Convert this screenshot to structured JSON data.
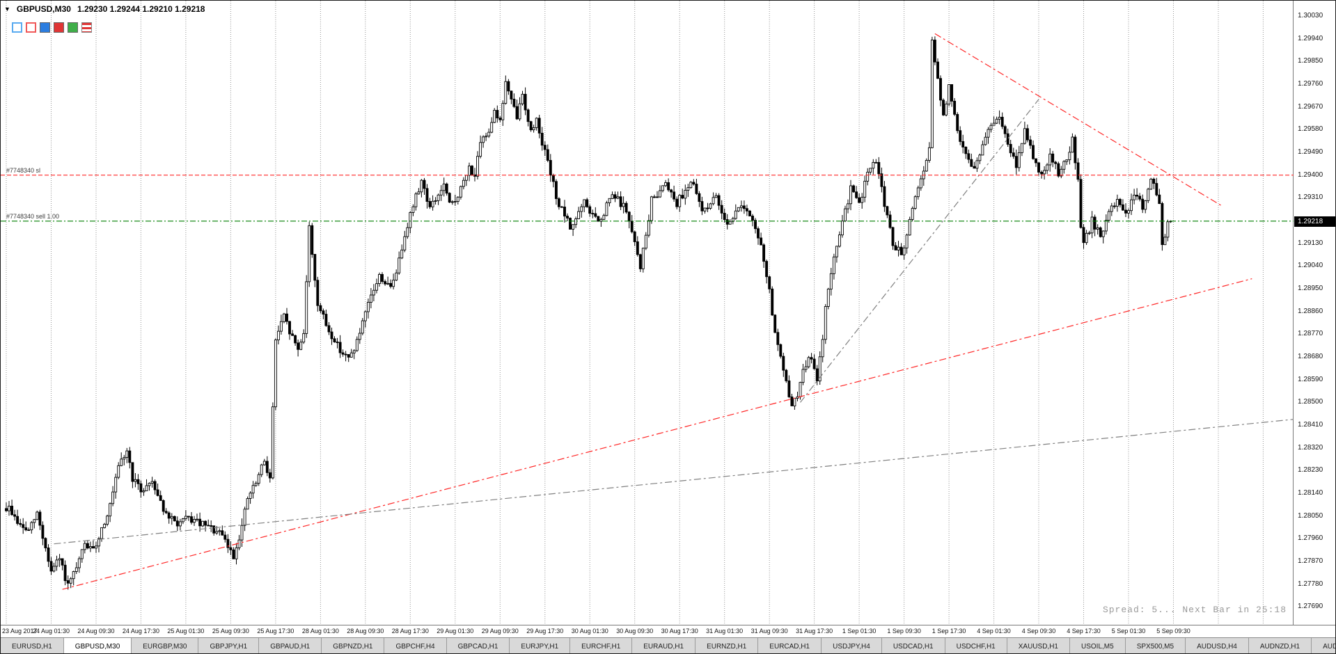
{
  "chart_header": {
    "collapse_icon": "▼",
    "title": "GBPUSD,M30",
    "ohlc": "1.29230 1.29244 1.29210 1.29218"
  },
  "toolbar": {
    "swatches": [
      {
        "name": "outline-blue-swatch",
        "style": "outline",
        "color": "#5aabf0"
      },
      {
        "name": "outline-red-swatch",
        "style": "outline",
        "color": "#f05a5a"
      },
      {
        "name": "blue-fill-swatch",
        "style": "fill",
        "color": "#2b7de0"
      },
      {
        "name": "red-fill-swatch",
        "style": "fill",
        "color": "#e03535"
      },
      {
        "name": "green-fill-swatch",
        "style": "fill",
        "color": "#3fae49"
      },
      {
        "name": "striped-red-swatch",
        "style": "stripes",
        "color": "#e03535"
      }
    ]
  },
  "status_text": "Spread: 5... Next Bar in 25:18",
  "current_price": "1.29218",
  "order_lines": [
    {
      "label": "#7748340 sl",
      "price": 1.294,
      "color": "#ff2626"
    },
    {
      "label": "#7748340 sell 1.00",
      "price": 1.29218,
      "color": "#007f00"
    }
  ],
  "chart_data": {
    "type": "candlestick",
    "symbol": "GBPUSD",
    "timeframe": "M30",
    "bars_total": 416,
    "y_axis": {
      "labels": [
        "1.30030",
        "1.29940",
        "1.29850",
        "1.29760",
        "1.29670",
        "1.29580",
        "1.29490",
        "1.29400",
        "1.29310",
        "1.29220",
        "1.29130",
        "1.29040",
        "1.28950",
        "1.28860",
        "1.28770",
        "1.28680",
        "1.28590",
        "1.28500",
        "1.28410",
        "1.28320",
        "1.28230",
        "1.28140",
        "1.28050",
        "1.27960",
        "1.27870",
        "1.27780",
        "1.27690"
      ],
      "max": 1.3003,
      "min": 1.2769,
      "step": 0.0009
    },
    "x_axis": {
      "labels": [
        "23 Aug 2017",
        "24 Aug 01:30",
        "24 Aug 09:30",
        "24 Aug 17:30",
        "25 Aug 01:30",
        "25 Aug 09:30",
        "25 Aug 17:30",
        "28 Aug 01:30",
        "28 Aug 09:30",
        "28 Aug 17:30",
        "29 Aug 01:30",
        "29 Aug 09:30",
        "29 Aug 17:30",
        "30 Aug 01:30",
        "30 Aug 09:30",
        "30 Aug 17:30",
        "31 Aug 01:30",
        "31 Aug 09:30",
        "31 Aug 17:30",
        "1 Sep 01:30",
        "1 Sep 09:30",
        "1 Sep 17:30",
        "4 Sep 01:30",
        "4 Sep 09:30",
        "4 Sep 17:30",
        "5 Sep 01:30",
        "5 Sep 09:30"
      ],
      "bars_per_gridline": 16
    },
    "anchors": [
      [
        2,
        1.2808
      ],
      [
        6,
        1.2801
      ],
      [
        9,
        1.2799
      ],
      [
        12,
        1.2806
      ],
      [
        17,
        1.2783
      ],
      [
        20,
        1.2788
      ],
      [
        23,
        1.2777
      ],
      [
        26,
        1.2784
      ],
      [
        29,
        1.2794
      ],
      [
        32,
        1.2791
      ],
      [
        35,
        1.28
      ],
      [
        38,
        1.2809
      ],
      [
        41,
        1.2824
      ],
      [
        44,
        1.2831
      ],
      [
        46,
        1.282
      ],
      [
        49,
        1.2815
      ],
      [
        53,
        1.2819
      ],
      [
        56,
        1.2811
      ],
      [
        58,
        1.2805
      ],
      [
        62,
        1.2802
      ],
      [
        66,
        1.2804
      ],
      [
        70,
        1.2802
      ],
      [
        74,
        1.28
      ],
      [
        78,
        1.2797
      ],
      [
        82,
        1.2789
      ],
      [
        85,
        1.2801
      ],
      [
        87,
        1.2812
      ],
      [
        90,
        1.2818
      ],
      [
        93,
        1.2827
      ],
      [
        95,
        1.282
      ],
      [
        97,
        1.2875
      ],
      [
        100,
        1.2884
      ],
      [
        102,
        1.2878
      ],
      [
        105,
        1.2871
      ],
      [
        107,
        1.2878
      ],
      [
        109,
        1.2919
      ],
      [
        112,
        1.2889
      ],
      [
        116,
        1.2878
      ],
      [
        120,
        1.2871
      ],
      [
        123,
        1.2867
      ],
      [
        126,
        1.2874
      ],
      [
        128,
        1.2881
      ],
      [
        131,
        1.2892
      ],
      [
        134,
        1.29
      ],
      [
        138,
        1.2895
      ],
      [
        141,
        1.2906
      ],
      [
        143,
        1.2917
      ],
      [
        146,
        1.2928
      ],
      [
        149,
        1.2938
      ],
      [
        152,
        1.2927
      ],
      [
        155,
        1.2932
      ],
      [
        157,
        1.2936
      ],
      [
        159,
        1.2928
      ],
      [
        161,
        1.293
      ],
      [
        164,
        1.2937
      ],
      [
        166,
        1.2943
      ],
      [
        168,
        1.294
      ],
      [
        170,
        1.2952
      ],
      [
        173,
        1.2958
      ],
      [
        175,
        1.2966
      ],
      [
        177,
        1.2961
      ],
      [
        179,
        1.2977
      ],
      [
        181,
        1.2969
      ],
      [
        183,
        1.2963
      ],
      [
        185,
        1.2972
      ],
      [
        188,
        1.2957
      ],
      [
        190,
        1.2962
      ],
      [
        193,
        1.2949
      ],
      [
        196,
        1.2936
      ],
      [
        198,
        1.2928
      ],
      [
        200,
        1.2924
      ],
      [
        202,
        1.2919
      ],
      [
        205,
        1.2925
      ],
      [
        207,
        1.2929
      ],
      [
        210,
        1.2924
      ],
      [
        213,
        1.2921
      ],
      [
        215,
        1.2928
      ],
      [
        217,
        1.2932
      ],
      [
        220,
        1.2929
      ],
      [
        222,
        1.2926
      ],
      [
        224,
        1.2917
      ],
      [
        227,
        1.2904
      ],
      [
        229,
        1.2916
      ],
      [
        231,
        1.293
      ],
      [
        234,
        1.2934
      ],
      [
        236,
        1.2938
      ],
      [
        238,
        1.2933
      ],
      [
        240,
        1.2929
      ],
      [
        243,
        1.2934
      ],
      [
        245,
        1.2938
      ],
      [
        247,
        1.2932
      ],
      [
        249,
        1.2926
      ],
      [
        252,
        1.2929
      ],
      [
        254,
        1.2931
      ],
      [
        256,
        1.2926
      ],
      [
        258,
        1.2921
      ],
      [
        261,
        1.2925
      ],
      [
        263,
        1.2929
      ],
      [
        266,
        1.2923
      ],
      [
        268,
        1.2919
      ],
      [
        271,
        1.2907
      ],
      [
        273,
        1.2894
      ],
      [
        275,
        1.2877
      ],
      [
        278,
        1.2862
      ],
      [
        280,
        1.2853
      ],
      [
        281,
        1.2849
      ],
      [
        283,
        1.2853
      ],
      [
        285,
        1.2862
      ],
      [
        287,
        1.2869
      ],
      [
        289,
        1.2863
      ],
      [
        290,
        1.2858
      ],
      [
        292,
        1.2876
      ],
      [
        293,
        1.2889
      ],
      [
        295,
        1.29
      ],
      [
        296,
        1.2908
      ],
      [
        298,
        1.2915
      ],
      [
        299,
        1.2921
      ],
      [
        301,
        1.293
      ],
      [
        302,
        1.2936
      ],
      [
        304,
        1.2931
      ],
      [
        305,
        1.2928
      ],
      [
        307,
        1.2937
      ],
      [
        308,
        1.2941
      ],
      [
        310,
        1.2944
      ],
      [
        311,
        1.2946
      ],
      [
        313,
        1.2936
      ],
      [
        314,
        1.2928
      ],
      [
        316,
        1.2918
      ],
      [
        317,
        1.2913
      ],
      [
        319,
        1.291
      ],
      [
        320,
        1.2907
      ],
      [
        322,
        1.2916
      ],
      [
        323,
        1.2922
      ],
      [
        325,
        1.293
      ],
      [
        326,
        1.2936
      ],
      [
        328,
        1.2941
      ],
      [
        329,
        1.2946
      ],
      [
        330,
        1.295
      ],
      [
        331,
        1.2993
      ],
      [
        332,
        1.2985
      ],
      [
        334,
        1.297
      ],
      [
        335,
        1.2963
      ],
      [
        337,
        1.2975
      ],
      [
        339,
        1.2963
      ],
      [
        340,
        1.2957
      ],
      [
        342,
        1.2952
      ],
      [
        343,
        1.2949
      ],
      [
        345,
        1.2944
      ],
      [
        346,
        1.2942
      ],
      [
        348,
        1.2949
      ],
      [
        349,
        1.2953
      ],
      [
        351,
        1.2957
      ],
      [
        352,
        1.2959
      ],
      [
        354,
        1.2962
      ],
      [
        355,
        1.2963
      ],
      [
        357,
        1.2956
      ],
      [
        358,
        1.2951
      ],
      [
        360,
        1.2947
      ],
      [
        361,
        1.2944
      ],
      [
        363,
        1.2952
      ],
      [
        364,
        1.2958
      ],
      [
        366,
        1.2952
      ],
      [
        367,
        1.2947
      ],
      [
        369,
        1.2942
      ],
      [
        370,
        1.2939
      ],
      [
        372,
        1.2945
      ],
      [
        373,
        1.2949
      ],
      [
        375,
        1.2944
      ],
      [
        376,
        1.2941
      ],
      [
        378,
        1.2944
      ],
      [
        379,
        1.2947
      ],
      [
        381,
        1.2954
      ],
      [
        383,
        1.2937
      ],
      [
        384,
        1.292
      ],
      [
        385,
        1.2913
      ],
      [
        387,
        1.2918
      ],
      [
        388,
        1.2922
      ],
      [
        390,
        1.2918
      ],
      [
        391,
        1.2915
      ],
      [
        393,
        1.2921
      ],
      [
        394,
        1.2925
      ],
      [
        396,
        1.2929
      ],
      [
        397,
        1.2931
      ],
      [
        399,
        1.2927
      ],
      [
        400,
        1.2924
      ],
      [
        402,
        1.2929
      ],
      [
        403,
        1.2933
      ],
      [
        405,
        1.293
      ],
      [
        406,
        1.2927
      ],
      [
        408,
        1.2934
      ],
      [
        409,
        1.2938
      ],
      [
        411,
        1.2933
      ],
      [
        412,
        1.2928
      ],
      [
        413,
        1.2912
      ],
      [
        414,
        1.2916
      ],
      [
        415,
        1.29218
      ],
      [
        416,
        1.29218
      ]
    ],
    "trendlines": [
      {
        "name": "descending-red",
        "from": [
          331,
          1.2996
        ],
        "to": [
          433,
          1.2928
        ],
        "color": "#ff2626"
      },
      {
        "name": "ascending-red",
        "from": [
          20,
          1.2776
        ],
        "to": [
          444,
          1.2899
        ],
        "color": "#ff2626"
      },
      {
        "name": "ascending-gray-steep",
        "from": [
          283,
          1.285
        ],
        "to": [
          368,
          1.297
        ],
        "color": "#808080"
      },
      {
        "name": "ascending-gray-shallow",
        "from": [
          17,
          1.2794
        ],
        "to": [
          465,
          1.2844
        ],
        "color": "#808080"
      }
    ]
  },
  "tabs": {
    "items": [
      {
        "label": "EURUSD,H1",
        "active": false
      },
      {
        "label": "GBPUSD,M30",
        "active": true
      },
      {
        "label": "EURGBP,M30",
        "active": false
      },
      {
        "label": "GBPJPY,H1",
        "active": false
      },
      {
        "label": "GBPAUD,H1",
        "active": false
      },
      {
        "label": "GBPNZD,H1",
        "active": false
      },
      {
        "label": "GBPCHF,H4",
        "active": false
      },
      {
        "label": "GBPCAD,H1",
        "active": false
      },
      {
        "label": "EURJPY,H1",
        "active": false
      },
      {
        "label": "EURCHF,H1",
        "active": false
      },
      {
        "label": "EURAUD,H1",
        "active": false
      },
      {
        "label": "EURNZD,H1",
        "active": false
      },
      {
        "label": "EURCAD,H1",
        "active": false
      },
      {
        "label": "USDJPY,H4",
        "active": false
      },
      {
        "label": "USDCAD,H1",
        "active": false
      },
      {
        "label": "USDCHF,H1",
        "active": false
      },
      {
        "label": "XAUUSD,H1",
        "active": false
      },
      {
        "label": "USOIL,M5",
        "active": false
      },
      {
        "label": "SPX500,M5",
        "active": false
      },
      {
        "label": "AUDUSD,H4",
        "active": false
      },
      {
        "label": "AUDNZD,H1",
        "active": false
      },
      {
        "label": "AUDCAD,Daily",
        "active": false
      }
    ]
  }
}
